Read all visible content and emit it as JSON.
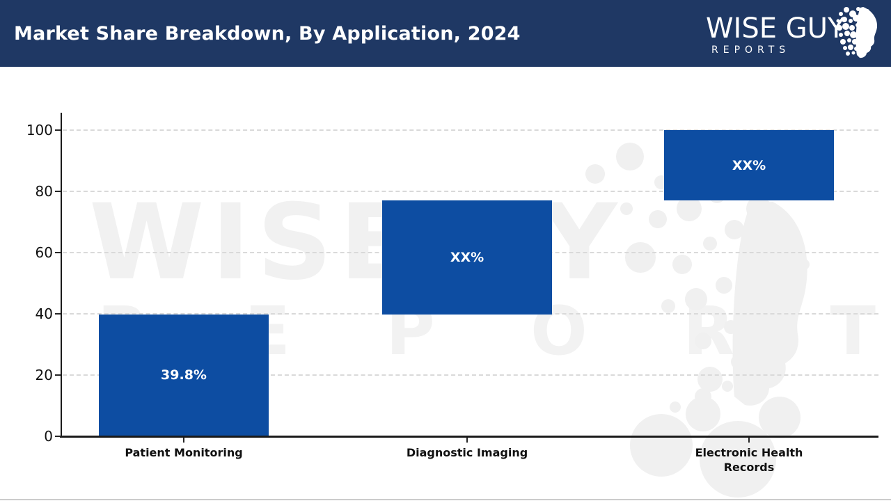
{
  "header": {
    "title": "Market Share Breakdown, By Application, 2024",
    "logo": {
      "name": "WISE GUY",
      "reports": "R E P O R T S"
    }
  },
  "watermark": {
    "word1": "WISE G",
    "word2": "Y",
    "line2": "R E P O R T S"
  },
  "chart_data": {
    "type": "bar",
    "subtype": "floating-segment-waterfall",
    "title": "Market Share Breakdown, By Application, 2024",
    "categories": [
      "Patient Monitoring",
      "Diagnostic Imaging",
      "Electronic Health Records"
    ],
    "bars": [
      {
        "category": "Patient Monitoring",
        "start": 0,
        "end": 39.8,
        "label": "39.8%"
      },
      {
        "category": "Diagnostic Imaging",
        "start": 39.8,
        "end": 77,
        "label": "XX%"
      },
      {
        "category": "Electronic Health Records",
        "start": 77,
        "end": 100,
        "label": "XX%"
      }
    ],
    "yticks": [
      0,
      20,
      40,
      60,
      80,
      100
    ],
    "ylim": [
      0,
      106
    ],
    "grid": "horizontal-dashed",
    "legend": "none",
    "bar_color": "#0d4da2",
    "header_color": "#1f3864",
    "grid_color": "#d9d9d9",
    "axis_color": "#1a1a1a",
    "label_color": "#ffffff"
  }
}
